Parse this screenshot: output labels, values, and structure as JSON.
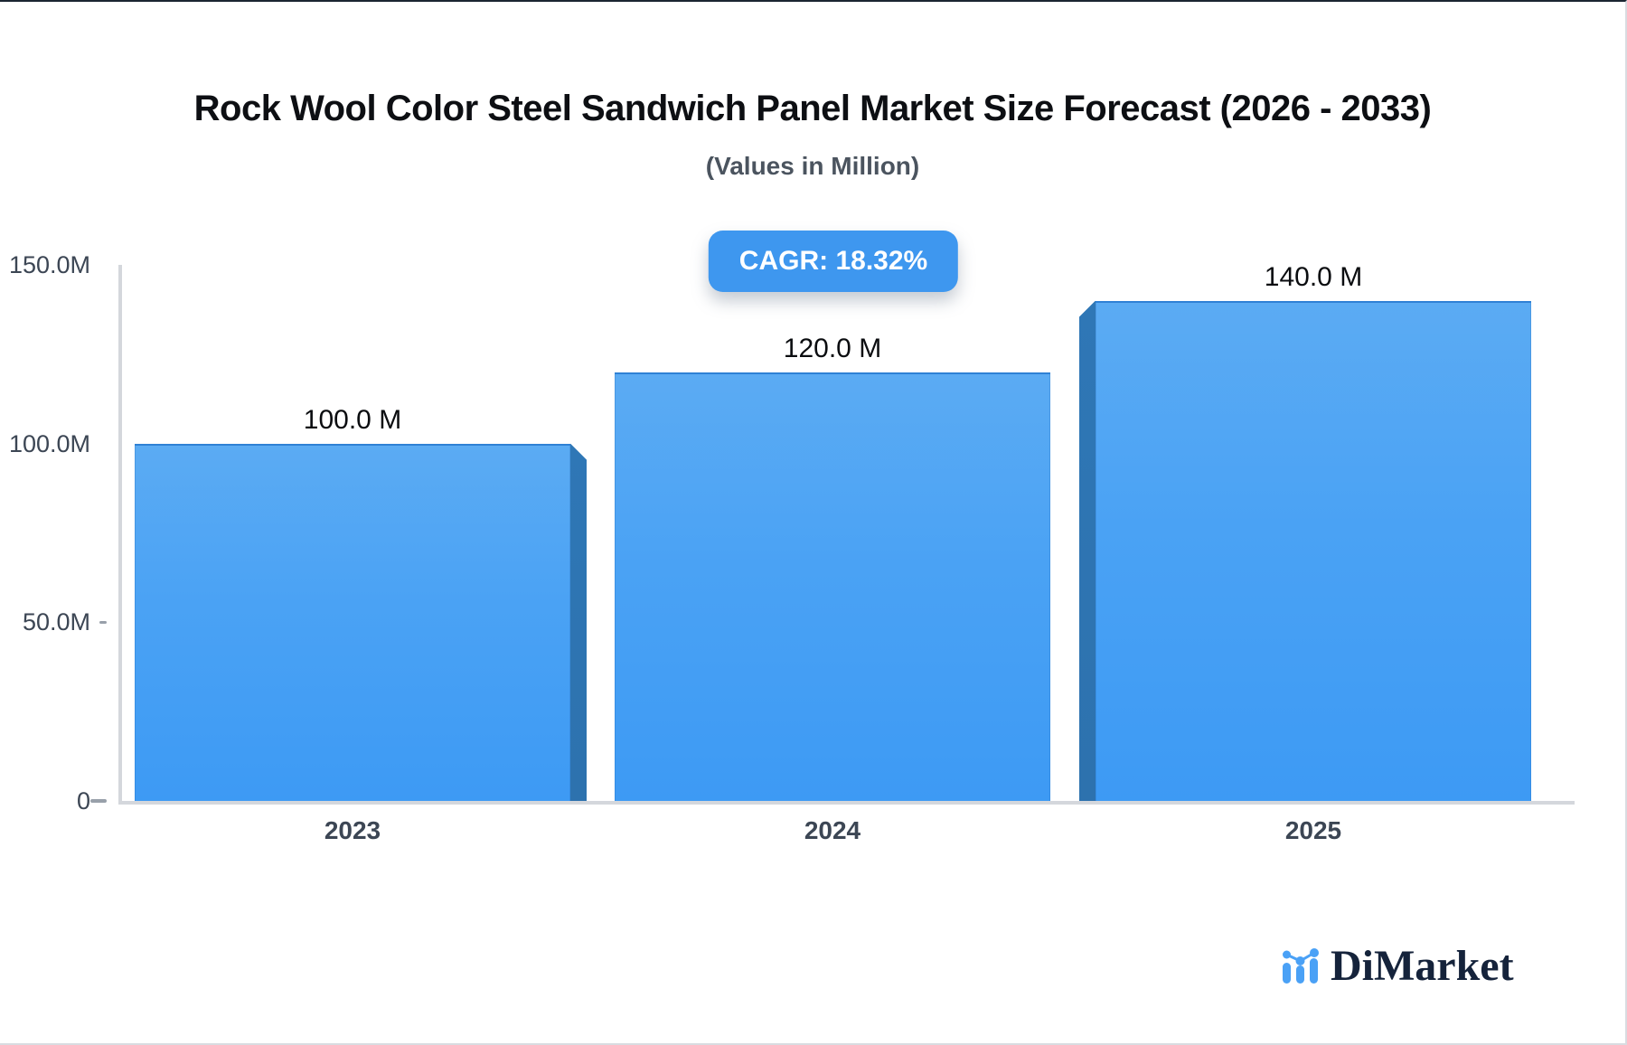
{
  "header": {
    "title": "Rock Wool Color Steel Sandwich Panel Market Size Forecast (2026 - 2033)",
    "subtitle": "(Values in Million)"
  },
  "cagr_badge": {
    "label": "CAGR: 18.32%"
  },
  "chart_data": {
    "type": "bar",
    "title": "Rock Wool Color Steel Sandwich Panel Market Size Forecast (2026 - 2033)",
    "subtitle": "(Values in Million)",
    "unit": "Million",
    "categories": [
      "2023",
      "2024",
      "2025"
    ],
    "values": [
      100,
      120,
      140
    ],
    "value_labels": [
      "100.0 M",
      "120.0 M",
      "140.0 M"
    ],
    "ylim": [
      0,
      150
    ],
    "ytick_values": [
      150,
      100,
      50,
      0
    ],
    "ytick_labels": [
      "150.0M",
      "100.0M",
      "50.0M",
      "0"
    ],
    "xlabel": "",
    "ylabel": "",
    "grid": false,
    "legend": false,
    "cagr_percent": 18.32,
    "bar_style": "3d-extruded"
  },
  "colors": {
    "accent_blue": "#3e97ef",
    "bar_gradient_top": "#5babf3",
    "bar_gradient_bottom": "#3d9af4",
    "bar_side_face": "#2e74b2",
    "axis_gray": "#d4d7dc",
    "tick_gray": "#98a0aa",
    "label_slate": "#3c4654",
    "logo_navy": "#15233b",
    "logo_blue": "#4aa1f6"
  },
  "branding": {
    "logo_text": "DiMarket",
    "logo_icon": "mini-bar-line-chart"
  }
}
